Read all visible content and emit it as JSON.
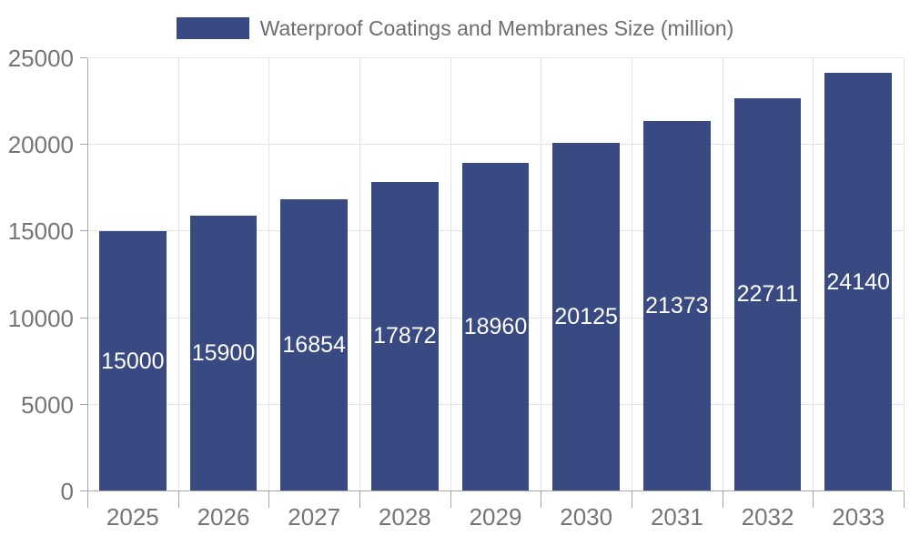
{
  "legend": {
    "swatch_color": "#394A82"
  },
  "chart_data": {
    "type": "bar",
    "title": "Waterproof Coatings and Membranes Size (million)",
    "categories": [
      "2025",
      "2026",
      "2027",
      "2028",
      "2029",
      "2030",
      "2031",
      "2032",
      "2033"
    ],
    "values": [
      15000,
      15900,
      16854,
      17872,
      18960,
      20125,
      21373,
      22711,
      24140
    ],
    "xlabel": "",
    "ylabel": "",
    "ylim": [
      0,
      25000
    ],
    "yticks": [
      0,
      5000,
      10000,
      15000,
      20000,
      25000
    ],
    "grid": true,
    "legend_position": "top-center",
    "bar_color": "#394A82",
    "bar_label_color": "#ffffff",
    "title_color": "#6e6e6e",
    "axis_text_color": "#757575",
    "grid_color": "#e4e4e8",
    "axis_line_color": "#a8a8a8"
  }
}
